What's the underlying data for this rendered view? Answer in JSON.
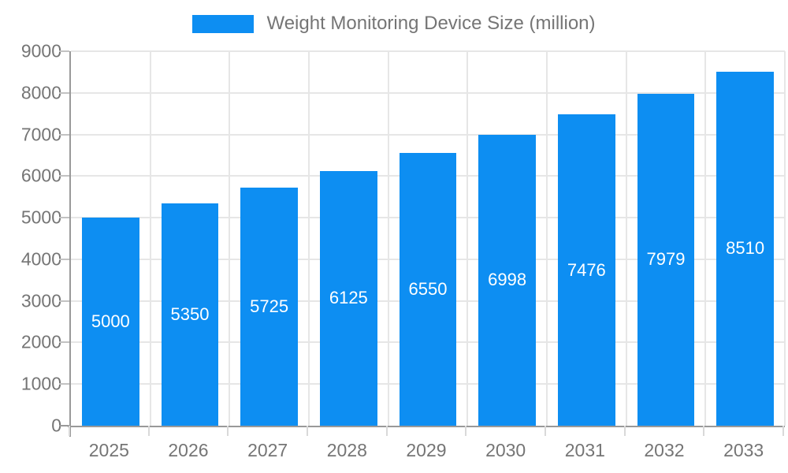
{
  "legend": {
    "label": "Weight Monitoring Device Size (million)"
  },
  "chart_data": {
    "type": "bar",
    "title": "Weight Monitoring Device Size (million)",
    "categories": [
      "2025",
      "2026",
      "2027",
      "2028",
      "2029",
      "2030",
      "2031",
      "2032",
      "2033"
    ],
    "values": [
      5000,
      5350,
      5725,
      6125,
      6550,
      6998,
      7476,
      7979,
      8510
    ],
    "xlabel": "",
    "ylabel": "",
    "ylim": [
      0,
      9000
    ],
    "ytick_step": 1000,
    "yticks": [
      0,
      1000,
      2000,
      3000,
      4000,
      5000,
      6000,
      7000,
      8000,
      9000
    ],
    "grid": true,
    "legend_position": "top",
    "value_labels": "inside-center"
  },
  "colors": {
    "bar": "#0d8ef2",
    "value_label": "#ffffff",
    "axis_line": "#999999",
    "gridline": "#e6e6e6",
    "tick": "#c2c2c2",
    "text": "#757575",
    "background": "#ffffff"
  }
}
